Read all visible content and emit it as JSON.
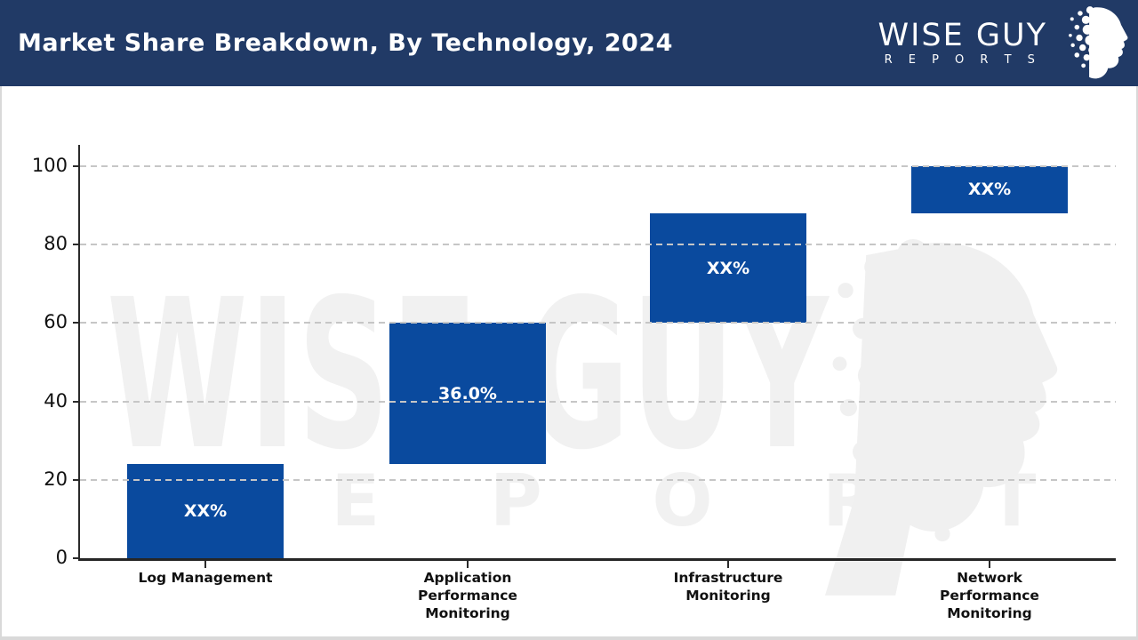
{
  "header": {
    "title": "Market Share Breakdown, By Technology, 2024",
    "logo_line1": "WISE GUY",
    "logo_line2": "R E P O R T S",
    "bg_color": "#213a66"
  },
  "watermark": {
    "line1": "WISE GUY",
    "line2": "R E P O R T S",
    "color": "#f1f1f1"
  },
  "chart_data": {
    "type": "bar",
    "subtype": "waterfall",
    "title": "Market Share Breakdown, By Technology, 2024",
    "categories": [
      "Log Management",
      "Application Performance Monitoring",
      "Infrastructure Monitoring",
      "Network Performance Monitoring"
    ],
    "segments": [
      {
        "category": "Log Management",
        "start": 0,
        "end": 24,
        "label": "XX%"
      },
      {
        "category": "Application Performance Monitoring",
        "start": 24,
        "end": 60,
        "label": "36.0%"
      },
      {
        "category": "Infrastructure Monitoring",
        "start": 60,
        "end": 88,
        "label": "XX%"
      },
      {
        "category": "Network Performance Monitoring",
        "start": 88,
        "end": 100,
        "label": "XX%"
      }
    ],
    "xlabel": "",
    "ylabel": "",
    "y_ticks": [
      0,
      20,
      40,
      60,
      80,
      100
    ],
    "ylim": [
      0,
      105
    ],
    "grid": "horizontal-dashed-above-bars",
    "legend": "none",
    "bar_color": "#0a4a9e",
    "bar_label_color": "#ffffff",
    "gridline_color": "#c6c6c6",
    "axis_color": "#262626"
  }
}
